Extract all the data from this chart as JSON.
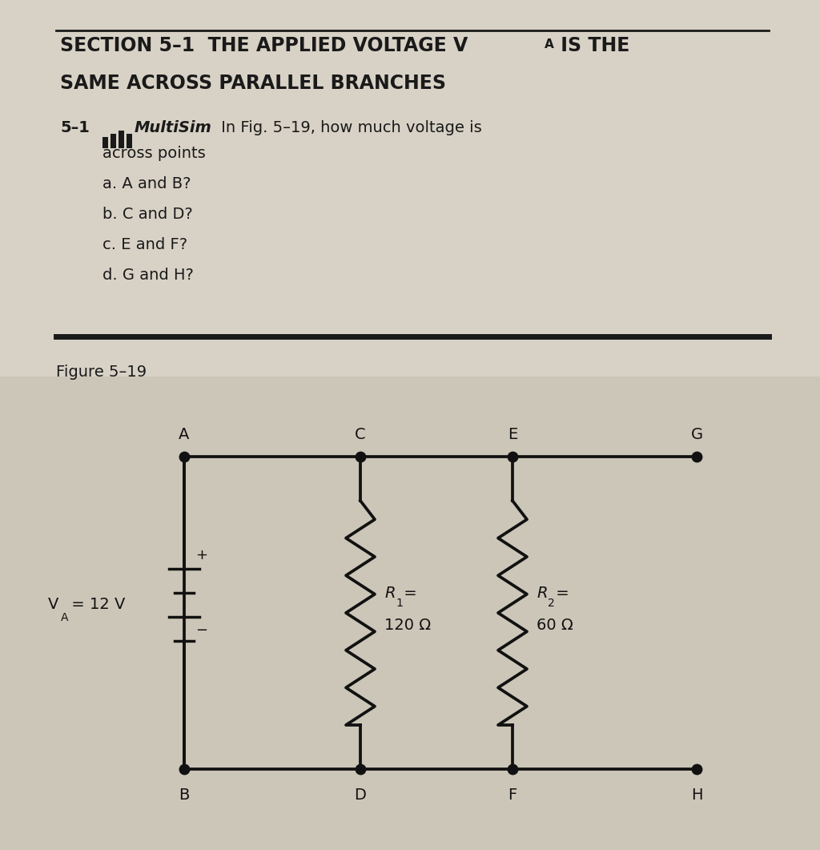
{
  "bg_top": "#d6d0c4",
  "bg_bottom": "#c8c2b4",
  "page_bg": "#cec8ba",
  "section_line1": "SECTION 5–1  THE APPLIED VOLTAGE V",
  "section_Va": "A",
  "section_line1_end": " IS THE",
  "section_line2": "SAME ACROSS PARALLEL BRANCHES",
  "prob_num": "5–1",
  "prob_text1": " In Fig. 5–19, how much voltage is",
  "prob_text2": "across points",
  "choices": [
    "a. A and B?",
    "b. C and D?",
    "c. E and F?",
    "d. G and H?"
  ],
  "figure_label": "Figure 5–19",
  "node_labels": [
    "A",
    "B",
    "C",
    "D",
    "E",
    "F",
    "G",
    "H"
  ],
  "circuit_bg": "#d2ccbe",
  "lw": 2.2,
  "resistor_amp": 0.016,
  "resistor_peaks": 5
}
